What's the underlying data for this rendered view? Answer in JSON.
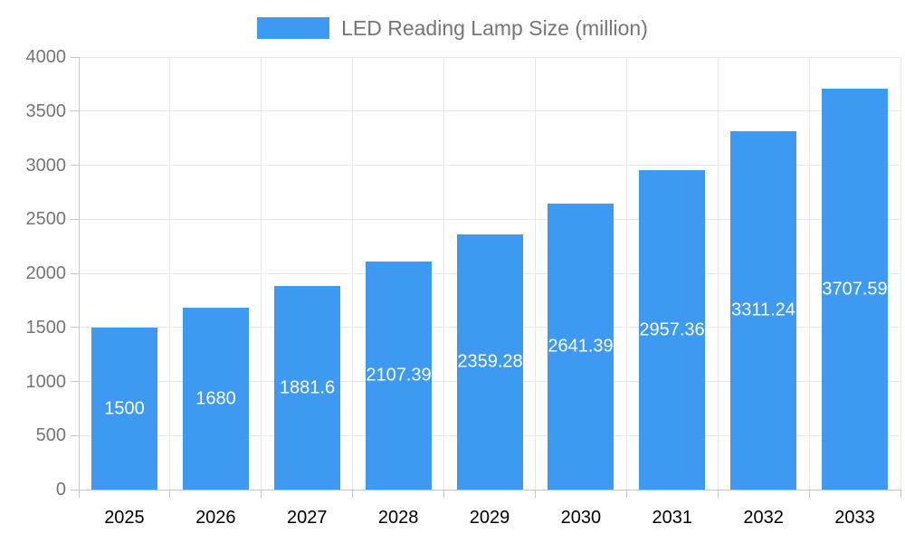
{
  "chart_data": {
    "type": "bar",
    "title": "LED Reading Lamp Size (million)",
    "categories": [
      "2025",
      "2026",
      "2027",
      "2028",
      "2029",
      "2030",
      "2031",
      "2032",
      "2033"
    ],
    "values": [
      1500,
      1680,
      1881.6,
      2107.39,
      2359.28,
      2641.39,
      2957.36,
      3311.24,
      3707.59
    ],
    "value_labels": [
      "1500",
      "1680",
      "1881.6",
      "2107.39",
      "2359.28",
      "2641.39",
      "2957.36",
      "3311.24",
      "3707.59"
    ],
    "ylim": [
      0,
      4000
    ],
    "ytick_step": 500,
    "ytick_labels": [
      "0",
      "500",
      "1000",
      "1500",
      "2000",
      "2500",
      "3000",
      "3500",
      "4000"
    ],
    "grid": true,
    "legend_position": "top",
    "colors": {
      "bar": "#3D9AF0",
      "bar_label": "#FFFFFF",
      "grid_line": "#E8E8E8",
      "axis_line": "#C6C6C6",
      "tick_label": "#757575",
      "legend_text": "#757575"
    }
  }
}
